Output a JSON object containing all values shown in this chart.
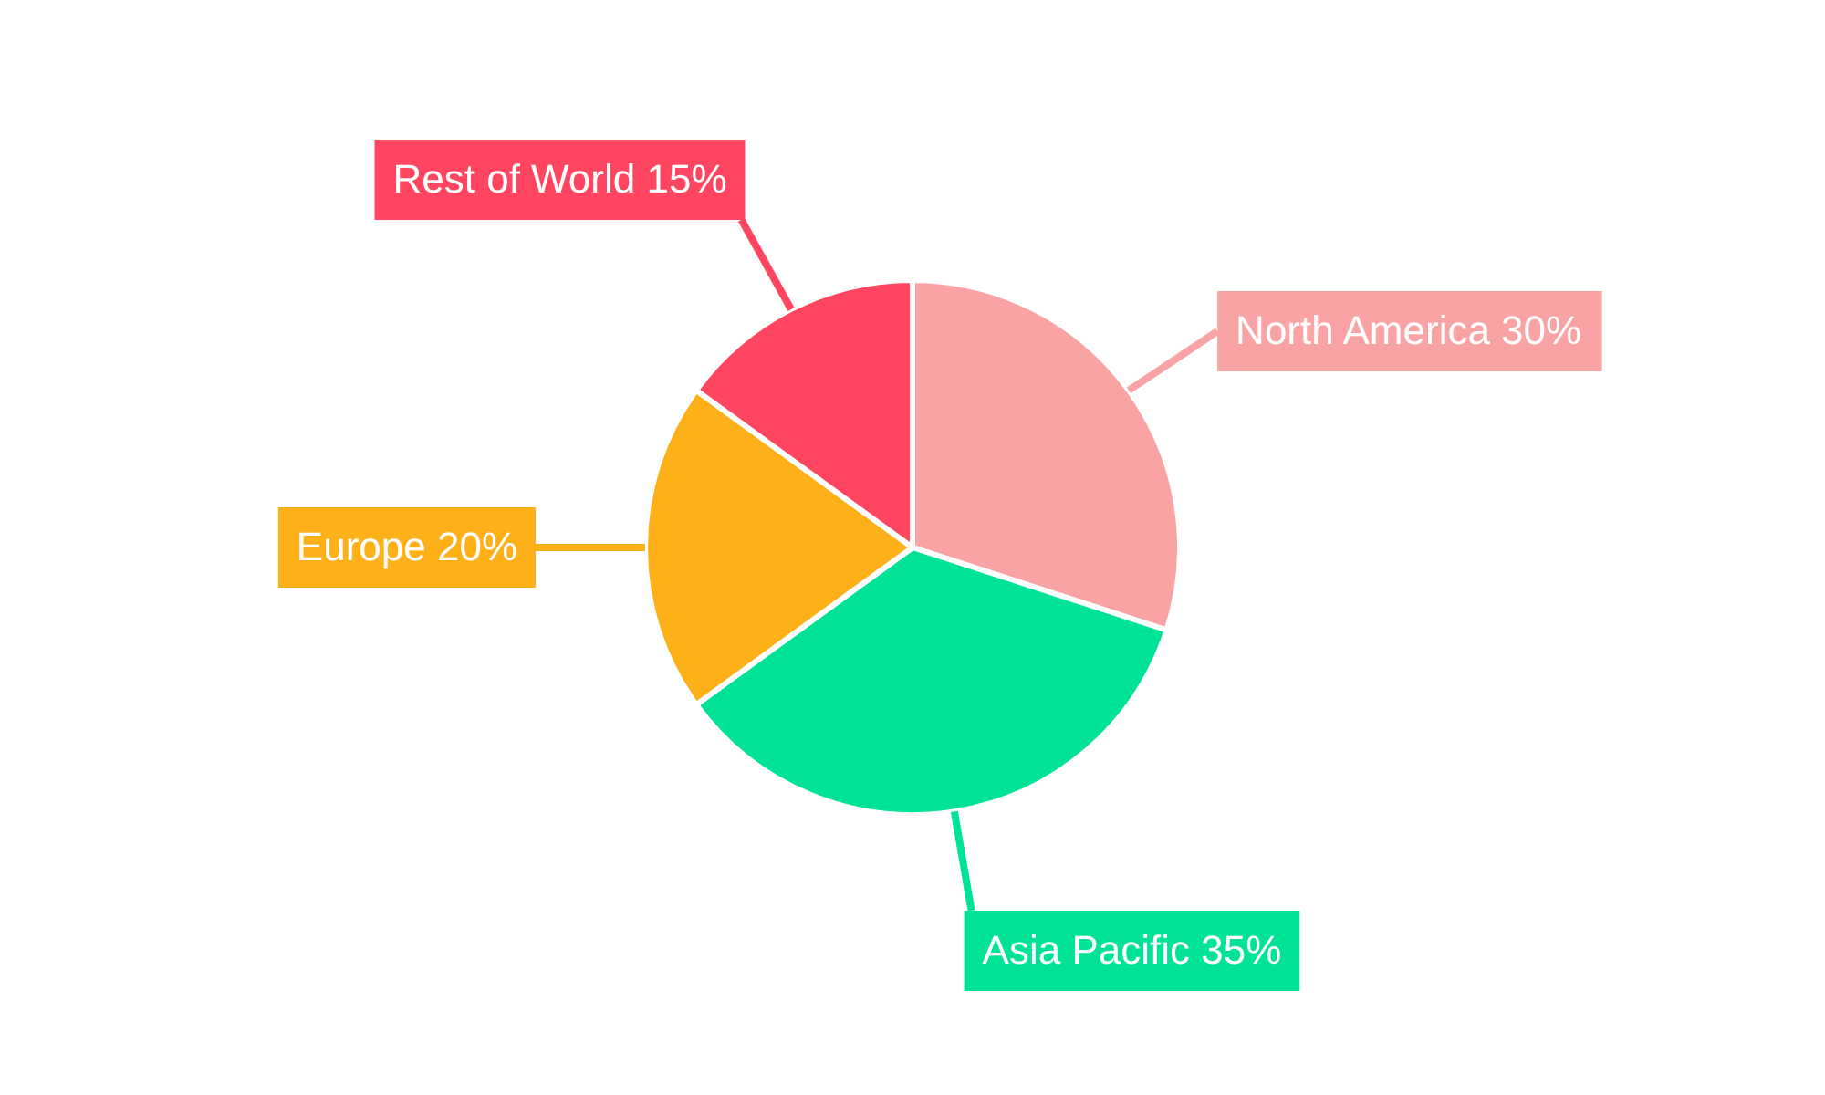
{
  "chart_data": {
    "type": "pie",
    "categories": [
      "North America",
      "Asia Pacific",
      "Europe",
      "Rest of World"
    ],
    "values": [
      30,
      35,
      20,
      15
    ],
    "value_labels": [
      "30%",
      "35%",
      "20%",
      "15%"
    ],
    "colors": [
      "#f9a3a4",
      "#00e396",
      "#feb019",
      "#ff4560"
    ],
    "legend": false
  }
}
